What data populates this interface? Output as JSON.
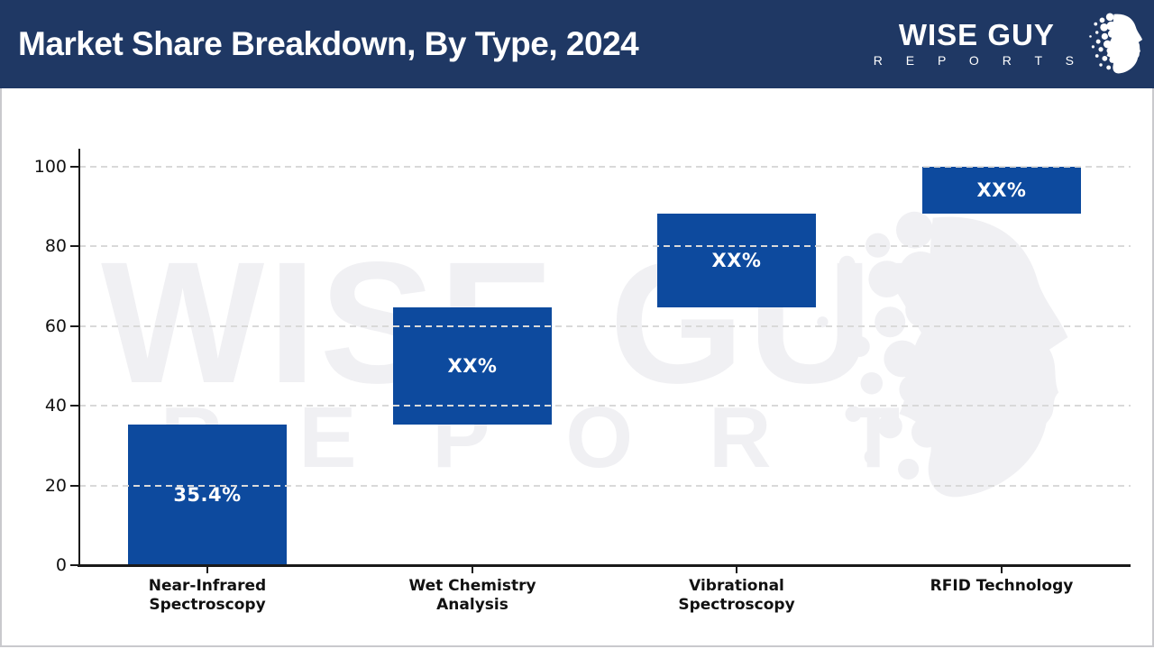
{
  "header": {
    "title": "Market Share Breakdown, By Type, 2024",
    "logo": {
      "wordmark": "WISE GUY",
      "subtext": "R E P O R T S"
    }
  },
  "watermark": {
    "wordmark": "WISE GUY",
    "subtext": "REPORTS"
  },
  "colors": {
    "header_bg": "#1f3864",
    "bar": "#0d4a9e",
    "grid": "#d9d9d9",
    "axis": "#1a1a1a",
    "bar_label_text": "#ffffff",
    "watermark": "#f0f0f3",
    "frame_border": "#c9c9cd"
  },
  "chart_data": {
    "type": "bar",
    "subtype": "waterfall-floating-segments",
    "title": "Market Share Breakdown, By Type, 2024",
    "categories": [
      "Near-Infrared Spectroscopy",
      "Wet Chemistry Analysis",
      "Vibrational Spectroscopy",
      "RFID Technology"
    ],
    "category_lines": [
      [
        "Near-Infrared",
        "Spectroscopy"
      ],
      [
        "Wet Chemistry",
        "Analysis"
      ],
      [
        "Vibrational",
        "Spectroscopy"
      ],
      [
        "RFID Technology"
      ]
    ],
    "series": [
      {
        "name": "Market Share (%)",
        "segments": [
          {
            "category": "Near-Infrared Spectroscopy",
            "start": 0,
            "end": 35.4,
            "label": "35.4%"
          },
          {
            "category": "Wet Chemistry Analysis",
            "start": 35.4,
            "end": 64.7,
            "label": "XX%"
          },
          {
            "category": "Vibrational Spectroscopy",
            "start": 64.7,
            "end": 88.2,
            "label": "XX%"
          },
          {
            "category": "RFID Technology",
            "start": 88.2,
            "end": 100,
            "label": "XX%"
          }
        ]
      }
    ],
    "xlabel": "",
    "ylabel": "",
    "ylim": [
      0,
      100
    ],
    "yticks": [
      0,
      20,
      40,
      60,
      80,
      100
    ],
    "grid": "horizontal dashed, drawn above bars",
    "legend": "none"
  }
}
